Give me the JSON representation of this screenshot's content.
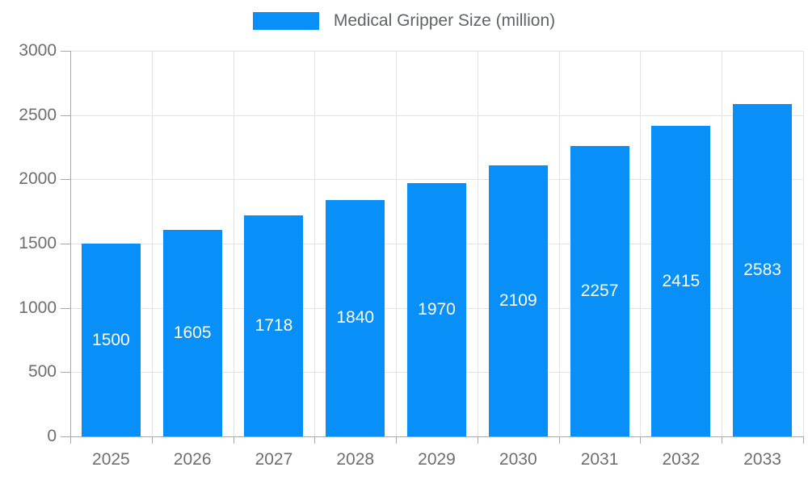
{
  "chart_data": {
    "type": "bar",
    "title": "Medical Gripper Size (million)",
    "legend": [
      "Medical Gripper Size (million)"
    ],
    "legend_position": "top",
    "categories": [
      "2025",
      "2026",
      "2027",
      "2028",
      "2029",
      "2030",
      "2031",
      "2032",
      "2033"
    ],
    "series": [
      {
        "name": "Medical Gripper Size (million)",
        "values": [
          1500,
          1605,
          1718,
          1840,
          1970,
          2109,
          2257,
          2415,
          2583
        ]
      }
    ],
    "xlabel": "",
    "ylabel": "",
    "ylim": [
      0,
      3000
    ],
    "yticks": [
      0,
      500,
      1000,
      1500,
      2000,
      2500,
      3000
    ],
    "grid": true,
    "bar_labels_inside": true
  },
  "colors": {
    "bar": "#0890f8",
    "bar_label_text": "#ffffff",
    "gridline": "#e3e3e3",
    "axis_line": "#a8a8a8",
    "axis_text": "#6e6e6e",
    "legend_text": "#5f6368"
  }
}
